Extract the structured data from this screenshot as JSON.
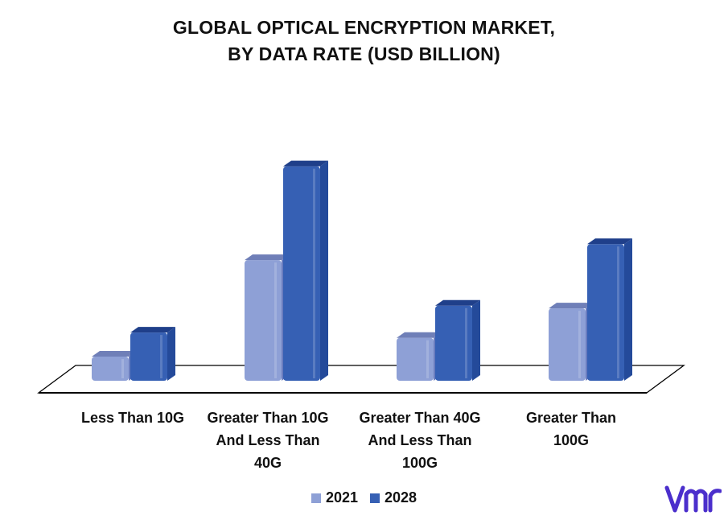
{
  "chart_data": {
    "type": "bar",
    "title_lines": [
      "GLOBAL OPTICAL ENCRYPTION MARKET,",
      "BY DATA RATE (USD BILLION)"
    ],
    "categories": [
      [
        "Less Than 10G"
      ],
      [
        "Greater Than 10G",
        "And Less Than",
        "40G"
      ],
      [
        "Greater Than 40G",
        "And Less Than",
        "100G"
      ],
      [
        "Greater Than",
        "100G"
      ]
    ],
    "series": [
      {
        "name": "2021",
        "color": "#8EA0D6",
        "top_color": "#6F7FB8",
        "side_color": "#6A7DBF",
        "values": [
          0.9,
          4.5,
          1.6,
          2.7
        ]
      },
      {
        "name": "2028",
        "color": "#3660B4",
        "top_color": "#1F3F8A",
        "side_color": "#244A9A",
        "values": [
          1.8,
          8.0,
          2.8,
          5.1
        ]
      }
    ],
    "ylim": [
      0,
      8.5
    ],
    "xlabel": "",
    "ylabel": "",
    "legend_position": "bottom-center",
    "grid": false
  },
  "logo": {
    "name": "vmr-logo",
    "color": "#4B2FCC"
  }
}
